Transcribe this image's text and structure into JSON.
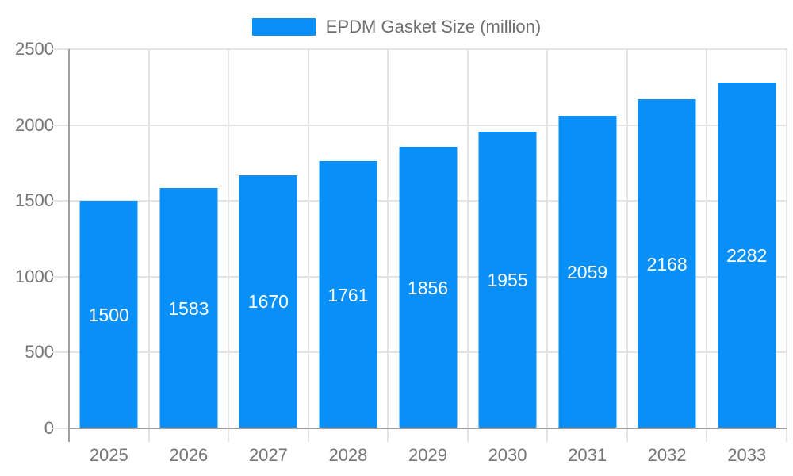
{
  "page": {
    "background": "#ffffff"
  },
  "legend": {
    "position": "top-center",
    "swatch_color": "#0990f8",
    "label": "EPDM Gasket Size (million)"
  },
  "chart_data": {
    "type": "bar",
    "title": "EPDM Gasket Size (million)",
    "categories": [
      "2025",
      "2026",
      "2027",
      "2028",
      "2029",
      "2030",
      "2031",
      "2032",
      "2033"
    ],
    "values": [
      1500,
      1583,
      1670,
      1761,
      1856,
      1955,
      2059,
      2168,
      2282
    ],
    "xlabel": "",
    "ylabel": "",
    "ylim": [
      0,
      2500
    ],
    "yticks": [
      0,
      500,
      1000,
      1500,
      2000,
      2500
    ],
    "grid": true,
    "legend_position": "top",
    "bar_color": "#0990f8",
    "value_label_color": "#ffffff",
    "grid_color": "#e4e4e4",
    "axis_color": "#a0a0a0",
    "tick_label_color": "#757575"
  }
}
